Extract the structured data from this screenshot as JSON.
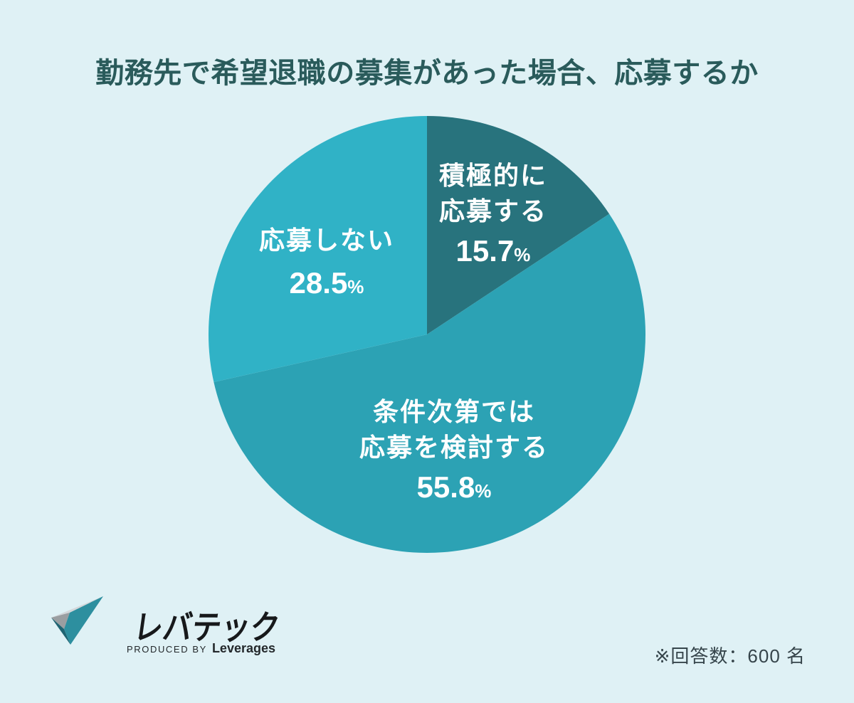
{
  "chart_data": {
    "type": "pie",
    "title": "勤務先で希望退職の募集があった場合、応募するか",
    "unit": "%",
    "direction": "clockwise",
    "start_angle_deg": 0,
    "background": "#DFF1F5",
    "title_color": "#2A5B5B",
    "label_color": "#FFFFFF",
    "slices": [
      {
        "label": "積極的に応募する",
        "label_lines": [
          "積極的に",
          "応募する"
        ],
        "value": 15.7,
        "color": "#28737D"
      },
      {
        "label": "条件次第では応募を検討する",
        "label_lines": [
          "条件次第では",
          "応募を検討する"
        ],
        "value": 55.8,
        "color": "#2CA2B4"
      },
      {
        "label": "応募しない",
        "label_lines": [
          "応募しない"
        ],
        "value": 28.5,
        "color": "#30B2C6"
      }
    ]
  },
  "footer": {
    "logo_text": "レバテック",
    "produced_by": "PRODUCED BY",
    "company": "Leverages",
    "note": "※回答数：600 名",
    "note_color": "#36454B",
    "logo_colors": {
      "icon_gray_light": "#D3D7DA",
      "icon_gray_mid": "#9A9EA1",
      "icon_teal_dark": "#1F6472",
      "icon_teal": "#2D8F9F",
      "text": "#17191B"
    }
  }
}
